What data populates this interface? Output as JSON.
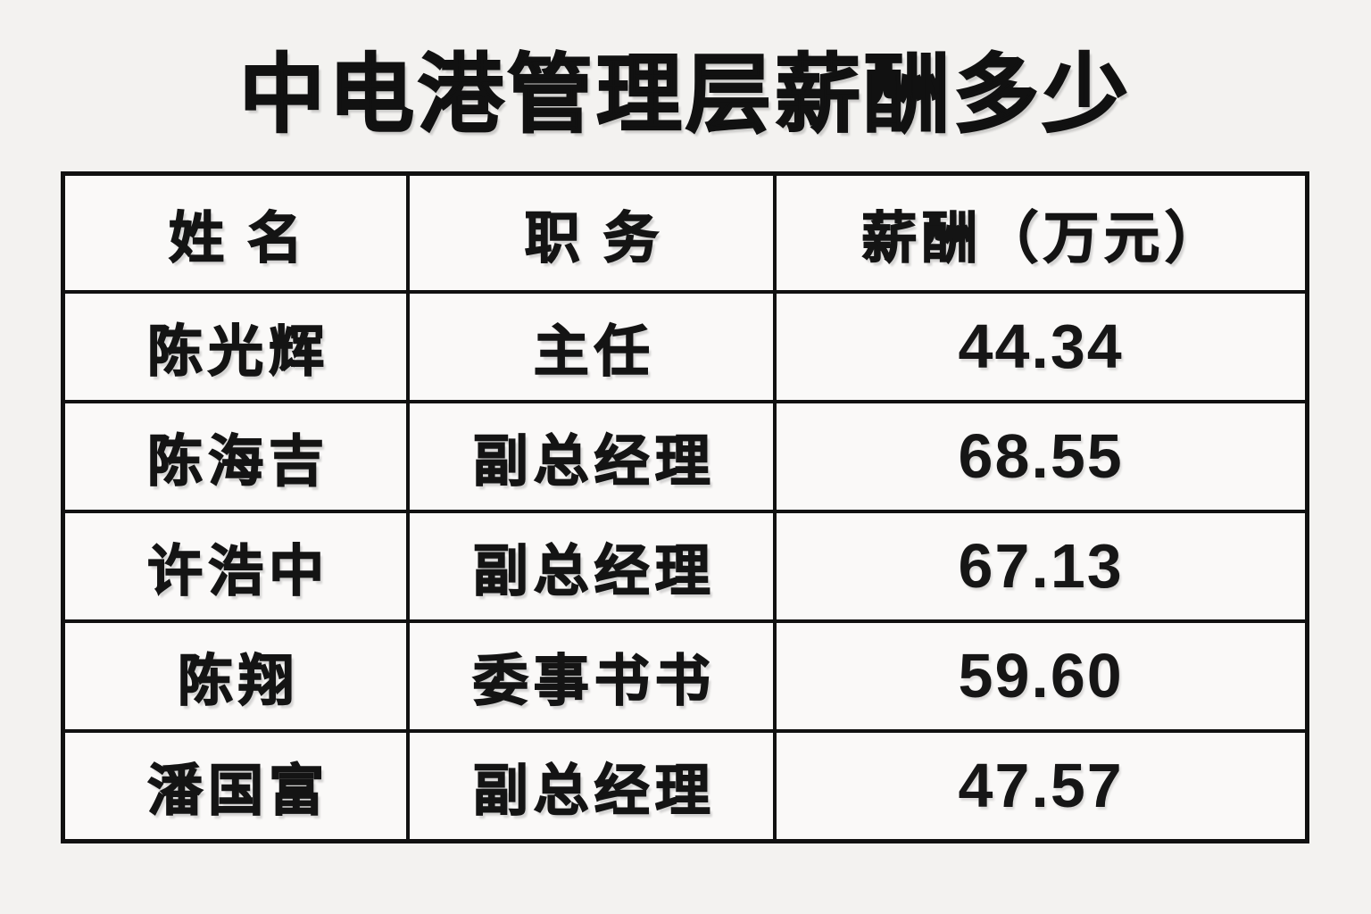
{
  "page": {
    "background_color": "#f3f2f0",
    "cell_color": "#faf9f8",
    "border_color": "#111111",
    "text_color": "#141414"
  },
  "title": "中电港管理层薪酬多少",
  "table": {
    "columns": [
      "姓名",
      "职务",
      "薪酬（万元）"
    ],
    "rows": [
      {
        "name": "陈光辉",
        "position": "主任",
        "salary": "44.34"
      },
      {
        "name": "陈海吉",
        "position": "副总经理",
        "salary": "68.55"
      },
      {
        "name": "许浩中",
        "position": "副总经理",
        "salary": "67.13"
      },
      {
        "name": "陈翔",
        "position": "委事书书",
        "salary": "59.60"
      },
      {
        "name": "潘国富",
        "position": "副总经理",
        "salary": "47.57"
      }
    ]
  },
  "chart_data": {
    "type": "table",
    "title": "中电港管理层薪酬多少",
    "columns": [
      "姓名",
      "职务",
      "薪酬（万元）"
    ],
    "rows": [
      [
        "陈光辉",
        "主任",
        44.34
      ],
      [
        "陈海吉",
        "副总经理",
        68.55
      ],
      [
        "许浩中",
        "副总经理",
        67.13
      ],
      [
        "陈翔",
        "委事书书",
        59.6
      ],
      [
        "潘国富",
        "副总经理",
        47.57
      ]
    ],
    "unit": "万元"
  }
}
